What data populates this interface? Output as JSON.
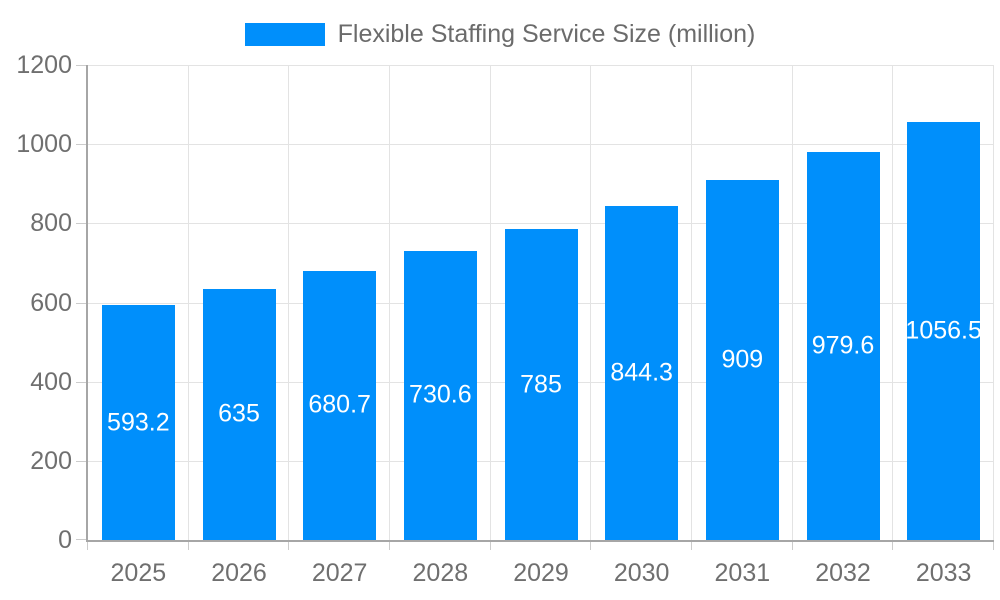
{
  "legend": {
    "label": "Flexible Staffing Service Size (million)"
  },
  "chart_data": {
    "type": "bar",
    "title": "Flexible Staffing Service Size (million)",
    "categories": [
      "2025",
      "2026",
      "2027",
      "2028",
      "2029",
      "2030",
      "2031",
      "2032",
      "2033"
    ],
    "values": [
      593.2,
      635,
      680.7,
      730.6,
      785,
      844.3,
      909,
      979.6,
      1056.5
    ],
    "data_labels": [
      "593.2",
      "635",
      "680.7",
      "730.6",
      "785",
      "844.3",
      "909",
      "979.6",
      "1056.5"
    ],
    "xlabel": "",
    "ylabel": "",
    "ylim": [
      0,
      1200
    ],
    "yticks": [
      0,
      200,
      400,
      600,
      800,
      1000,
      1200
    ],
    "grid": true,
    "legend_position": "top",
    "colors": {
      "bar": "#008FFB",
      "axis_line": "#a6a6a6",
      "gridline": "#e3e3e3",
      "tick": "#cccccc",
      "axis_label_text": "#6f6f6f",
      "legend_text": "#6b6b6b",
      "value_label_text": "#ffffff",
      "background": "#ffffff"
    }
  }
}
